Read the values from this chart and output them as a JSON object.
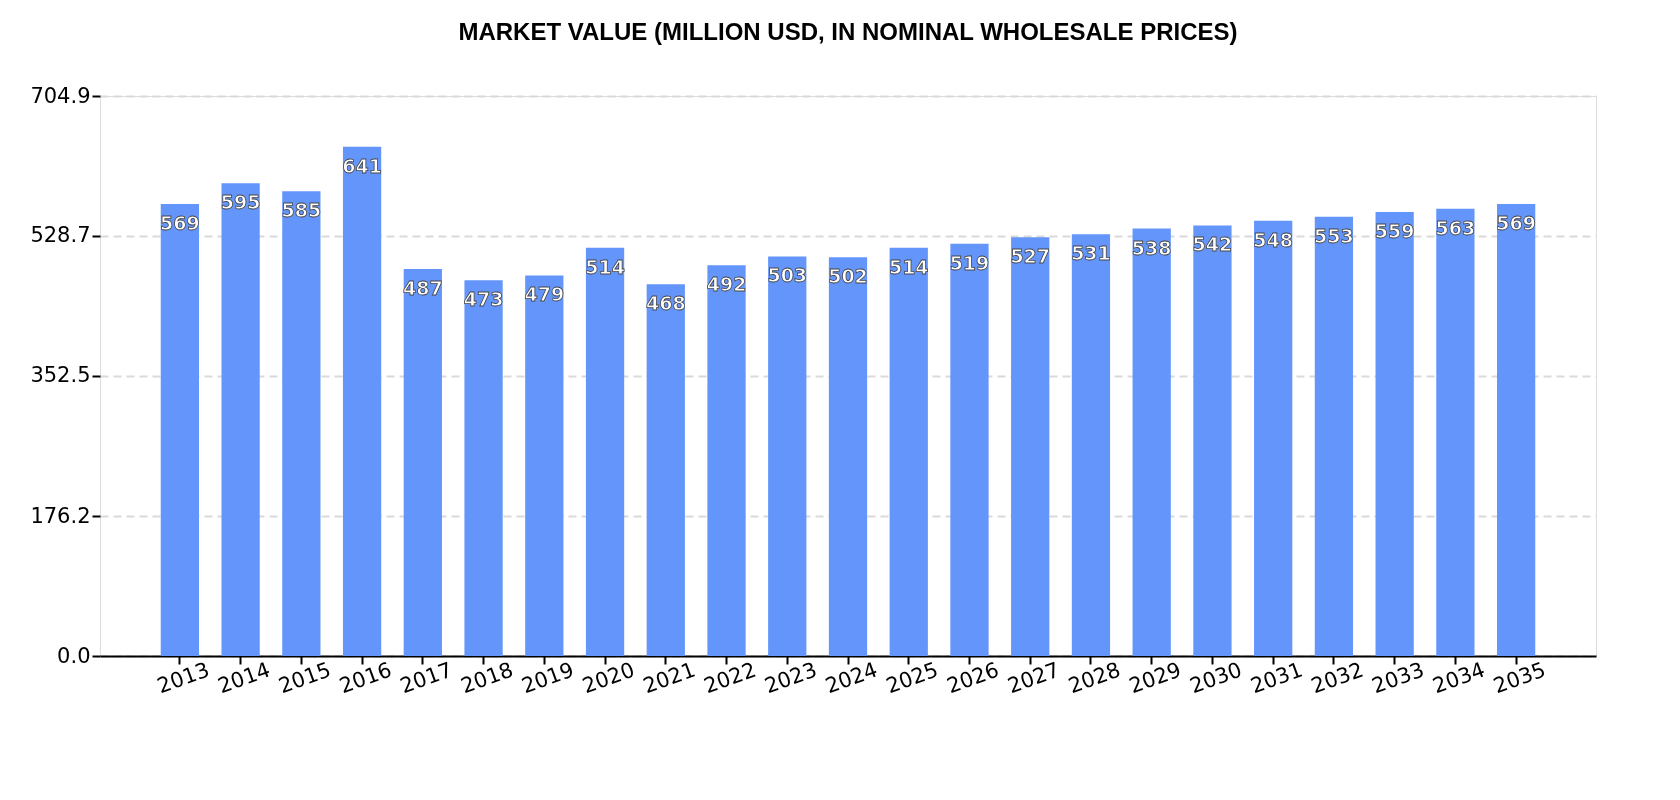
{
  "chart_data": {
    "type": "bar",
    "title": "MARKET VALUE (MILLION USD, IN NOMINAL WHOLESALE PRICES)",
    "categories": [
      "2013",
      "2014",
      "2015",
      "2016",
      "2017",
      "2018",
      "2019",
      "2020",
      "2021",
      "2022",
      "2023",
      "2024",
      "2025",
      "2026",
      "2027",
      "2028",
      "2029",
      "2030",
      "2031",
      "2032",
      "2033",
      "2034",
      "2035"
    ],
    "values": [
      569,
      595,
      585,
      641,
      487,
      473,
      479,
      514,
      468,
      492,
      503,
      502,
      514,
      519,
      527,
      531,
      538,
      542,
      548,
      553,
      559,
      563,
      569
    ],
    "color": "#6495fa",
    "ylim": [
      0,
      704.9
    ],
    "yticks": [
      {
        "value": 0,
        "label": "0.0"
      },
      176.2,
      352.5,
      528.7,
      704.9
    ],
    "grid": "y",
    "data_labels": true
  }
}
